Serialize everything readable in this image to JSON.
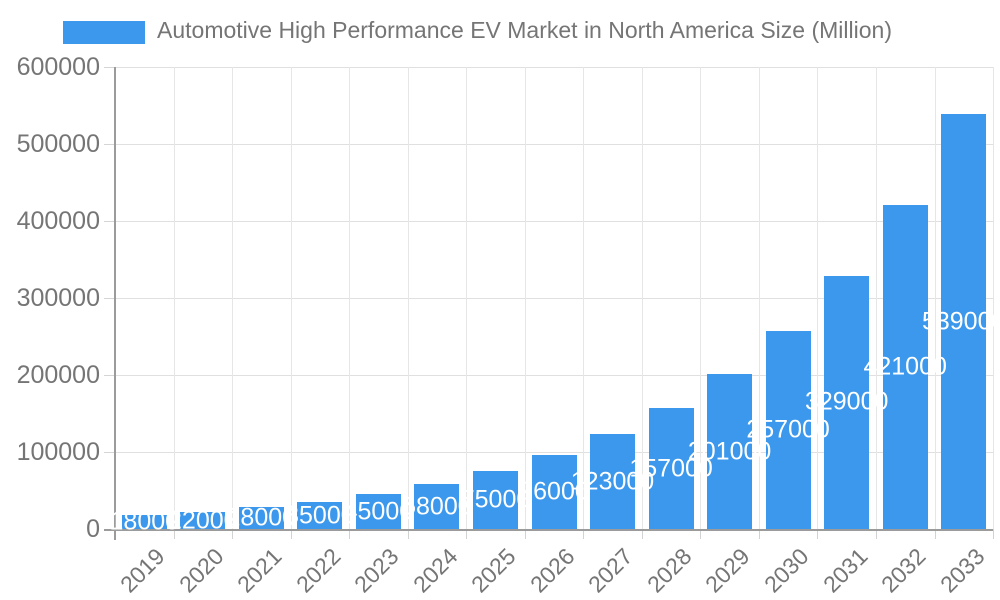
{
  "chart_data": {
    "type": "bar",
    "title": "Automotive High Performance EV Market in North America Size (Million)",
    "categories": [
      "2019",
      "2020",
      "2021",
      "2022",
      "2023",
      "2024",
      "2025",
      "2026",
      "2027",
      "2028",
      "2029",
      "2030",
      "2031",
      "2032",
      "2033"
    ],
    "values": [
      18000,
      22000,
      28000,
      35000,
      45000,
      58000,
      75000,
      96000,
      123000,
      157000,
      201000,
      257000,
      329000,
      421000,
      539000
    ],
    "xlabel": "",
    "ylabel": "",
    "ylim": [
      0,
      600000
    ],
    "yticks": [
      0,
      100000,
      200000,
      300000,
      400000,
      500000,
      600000
    ],
    "grid": true,
    "legend_position": "top-left",
    "bar_color": "#3B98EC",
    "value_label_color": "#FFFFFF",
    "axis_text_color": "#757575",
    "gridline_color": "#E0E0E0",
    "axis_line_color": "#9B9B9B"
  }
}
